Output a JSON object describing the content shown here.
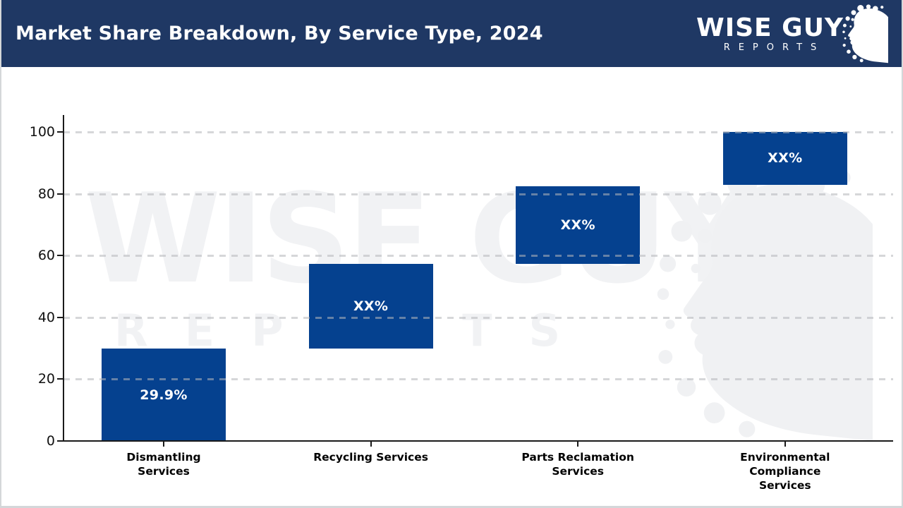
{
  "header": {
    "title": "Market Share Breakdown, By Service Type, 2024",
    "logo": {
      "brand": "WISE GUY",
      "subtitle": "REPORTS"
    }
  },
  "watermark": {
    "brand": "WISE GUY",
    "subtitle": "REPORTS"
  },
  "chart_data": {
    "type": "bar",
    "subtype": "waterfall-floating-bars",
    "title": "Market Share Breakdown, By Service Type, 2024",
    "categories": [
      "Dismantling Services",
      "Recycling Services",
      "Parts Reclamation Services",
      "Environmental Compliance Services"
    ],
    "category_label_lines": [
      [
        "Dismantling",
        "Services"
      ],
      [
        "Recycling Services"
      ],
      [
        "Parts Reclamation",
        "Services"
      ],
      [
        "Environmental",
        "Compliance",
        "Services"
      ]
    ],
    "segments": [
      {
        "category": "Dismantling Services",
        "start": 0,
        "end": 29.9,
        "label": "29.9%"
      },
      {
        "category": "Recycling Services",
        "start": 29.9,
        "end": 57.3,
        "label": "XX%"
      },
      {
        "category": "Parts Reclamation Services",
        "start": 57.4,
        "end": 82.4,
        "label": "XX%"
      },
      {
        "category": "Environmental Compliance Services",
        "start": 82.9,
        "end": 100,
        "label": "XX%"
      }
    ],
    "yticks": [
      0,
      20,
      40,
      60,
      80,
      100
    ],
    "ylim": [
      0,
      105
    ],
    "grid": "horizontal-dashed-over-bars",
    "legend": "none",
    "bar_color": "#05418F",
    "bar_label_color": "#ffffff",
    "header_bg_color": "#1f3864",
    "axis_color": "#1a1a1a",
    "gridline_color": "#d9d9d9",
    "watermark_color": "#f1f2f4"
  }
}
